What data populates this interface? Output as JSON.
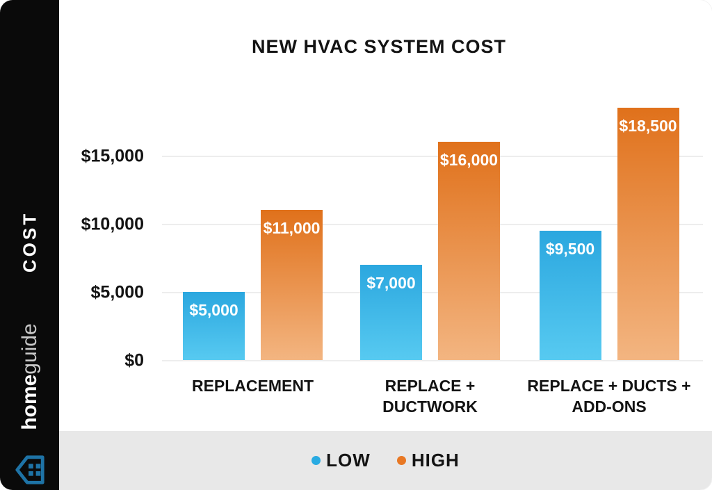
{
  "brand": {
    "sidebar_axis_label": "COST",
    "logo_text_bold": "home",
    "logo_text_light": "guide",
    "logo_icon": "house-icon",
    "logo_icon_color": "#1e73a6",
    "sidebar_background": "#0a0a0a"
  },
  "footer": {
    "background": "#e8e8e8"
  },
  "chart_data": {
    "type": "bar",
    "title": "NEW HVAC SYSTEM COST",
    "xlabel": "",
    "ylabel": "COST",
    "categories": [
      "REPLACEMENT",
      "REPLACE +\nDUCTWORK",
      "REPLACE + DUCTS +\nADD-ONS"
    ],
    "series": [
      {
        "name": "LOW",
        "values": [
          5000,
          7000,
          9500
        ],
        "labels": [
          "$5,000",
          "$7,000",
          "$9,500"
        ],
        "color_top": "#2ba7df",
        "color_bottom": "#57caf1",
        "legend_color": "#29abe2"
      },
      {
        "name": "HIGH",
        "values": [
          11000,
          16000,
          18500
        ],
        "labels": [
          "$11,000",
          "$16,000",
          "$18,500"
        ],
        "color_top": "#e0711b",
        "color_bottom": "#f3b581",
        "legend_color": "#e87824"
      }
    ],
    "y_ticks": [
      {
        "value": 0,
        "label": "$0"
      },
      {
        "value": 5000,
        "label": "$5,000"
      },
      {
        "value": 10000,
        "label": "$10,000"
      },
      {
        "value": 15000,
        "label": "$15,000"
      }
    ],
    "ylim": [
      0,
      20000
    ],
    "grid": true,
    "gridline_color": "#ededed",
    "legend_position": "bottom"
  }
}
